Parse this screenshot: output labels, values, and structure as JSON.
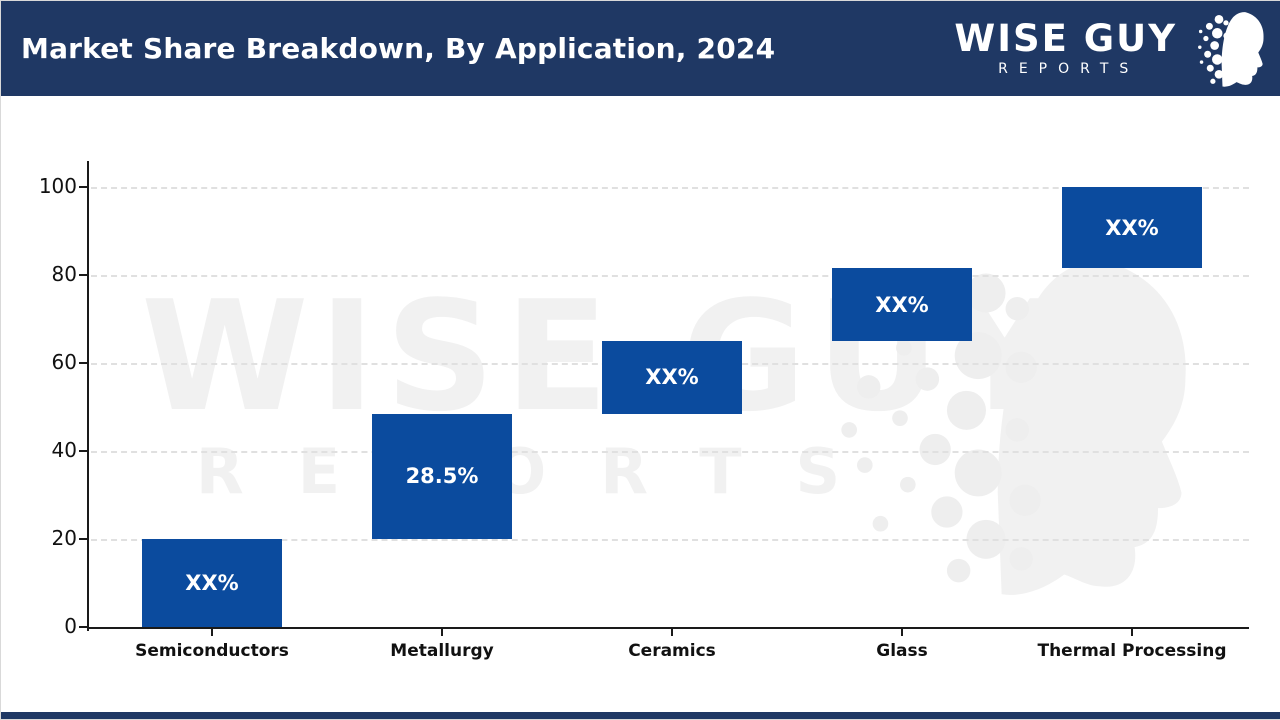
{
  "header": {
    "title": "Market Share Breakdown, By Application, 2024",
    "logo_line1": "WISE GUY",
    "logo_line2": "REPORTS"
  },
  "watermark": {
    "line1": "WISE GUY",
    "line2": "REPORTS"
  },
  "chart_data": {
    "type": "bar",
    "subtype": "waterfall",
    "title": "Market Share Breakdown, By Application, 2024",
    "categories": [
      "Semiconductors",
      "Metallurgy",
      "Ceramics",
      "Glass",
      "Thermal Processing"
    ],
    "segments": [
      {
        "category": "Semiconductors",
        "start": 0,
        "end": 20,
        "label": "XX%"
      },
      {
        "category": "Metallurgy",
        "start": 20,
        "end": 48.5,
        "label": "28.5%"
      },
      {
        "category": "Ceramics",
        "start": 48.5,
        "end": 65,
        "label": "XX%"
      },
      {
        "category": "Glass",
        "start": 65,
        "end": 81.5,
        "label": "XX%"
      },
      {
        "category": "Thermal Processing",
        "start": 81.5,
        "end": 100,
        "label": "XX%"
      }
    ],
    "xlabel": "",
    "ylabel": "",
    "ylim": [
      0,
      100
    ],
    "yticks": [
      0,
      20,
      40,
      60,
      80,
      100
    ],
    "grid": "horizontal-dashed",
    "legend": "none",
    "bar_color": "#0b4b9e",
    "bar_label_color": "#ffffff",
    "axis_color": "#1a1a1a",
    "gridline_color": "#e0e0e0",
    "header_color": "#1f3864"
  }
}
